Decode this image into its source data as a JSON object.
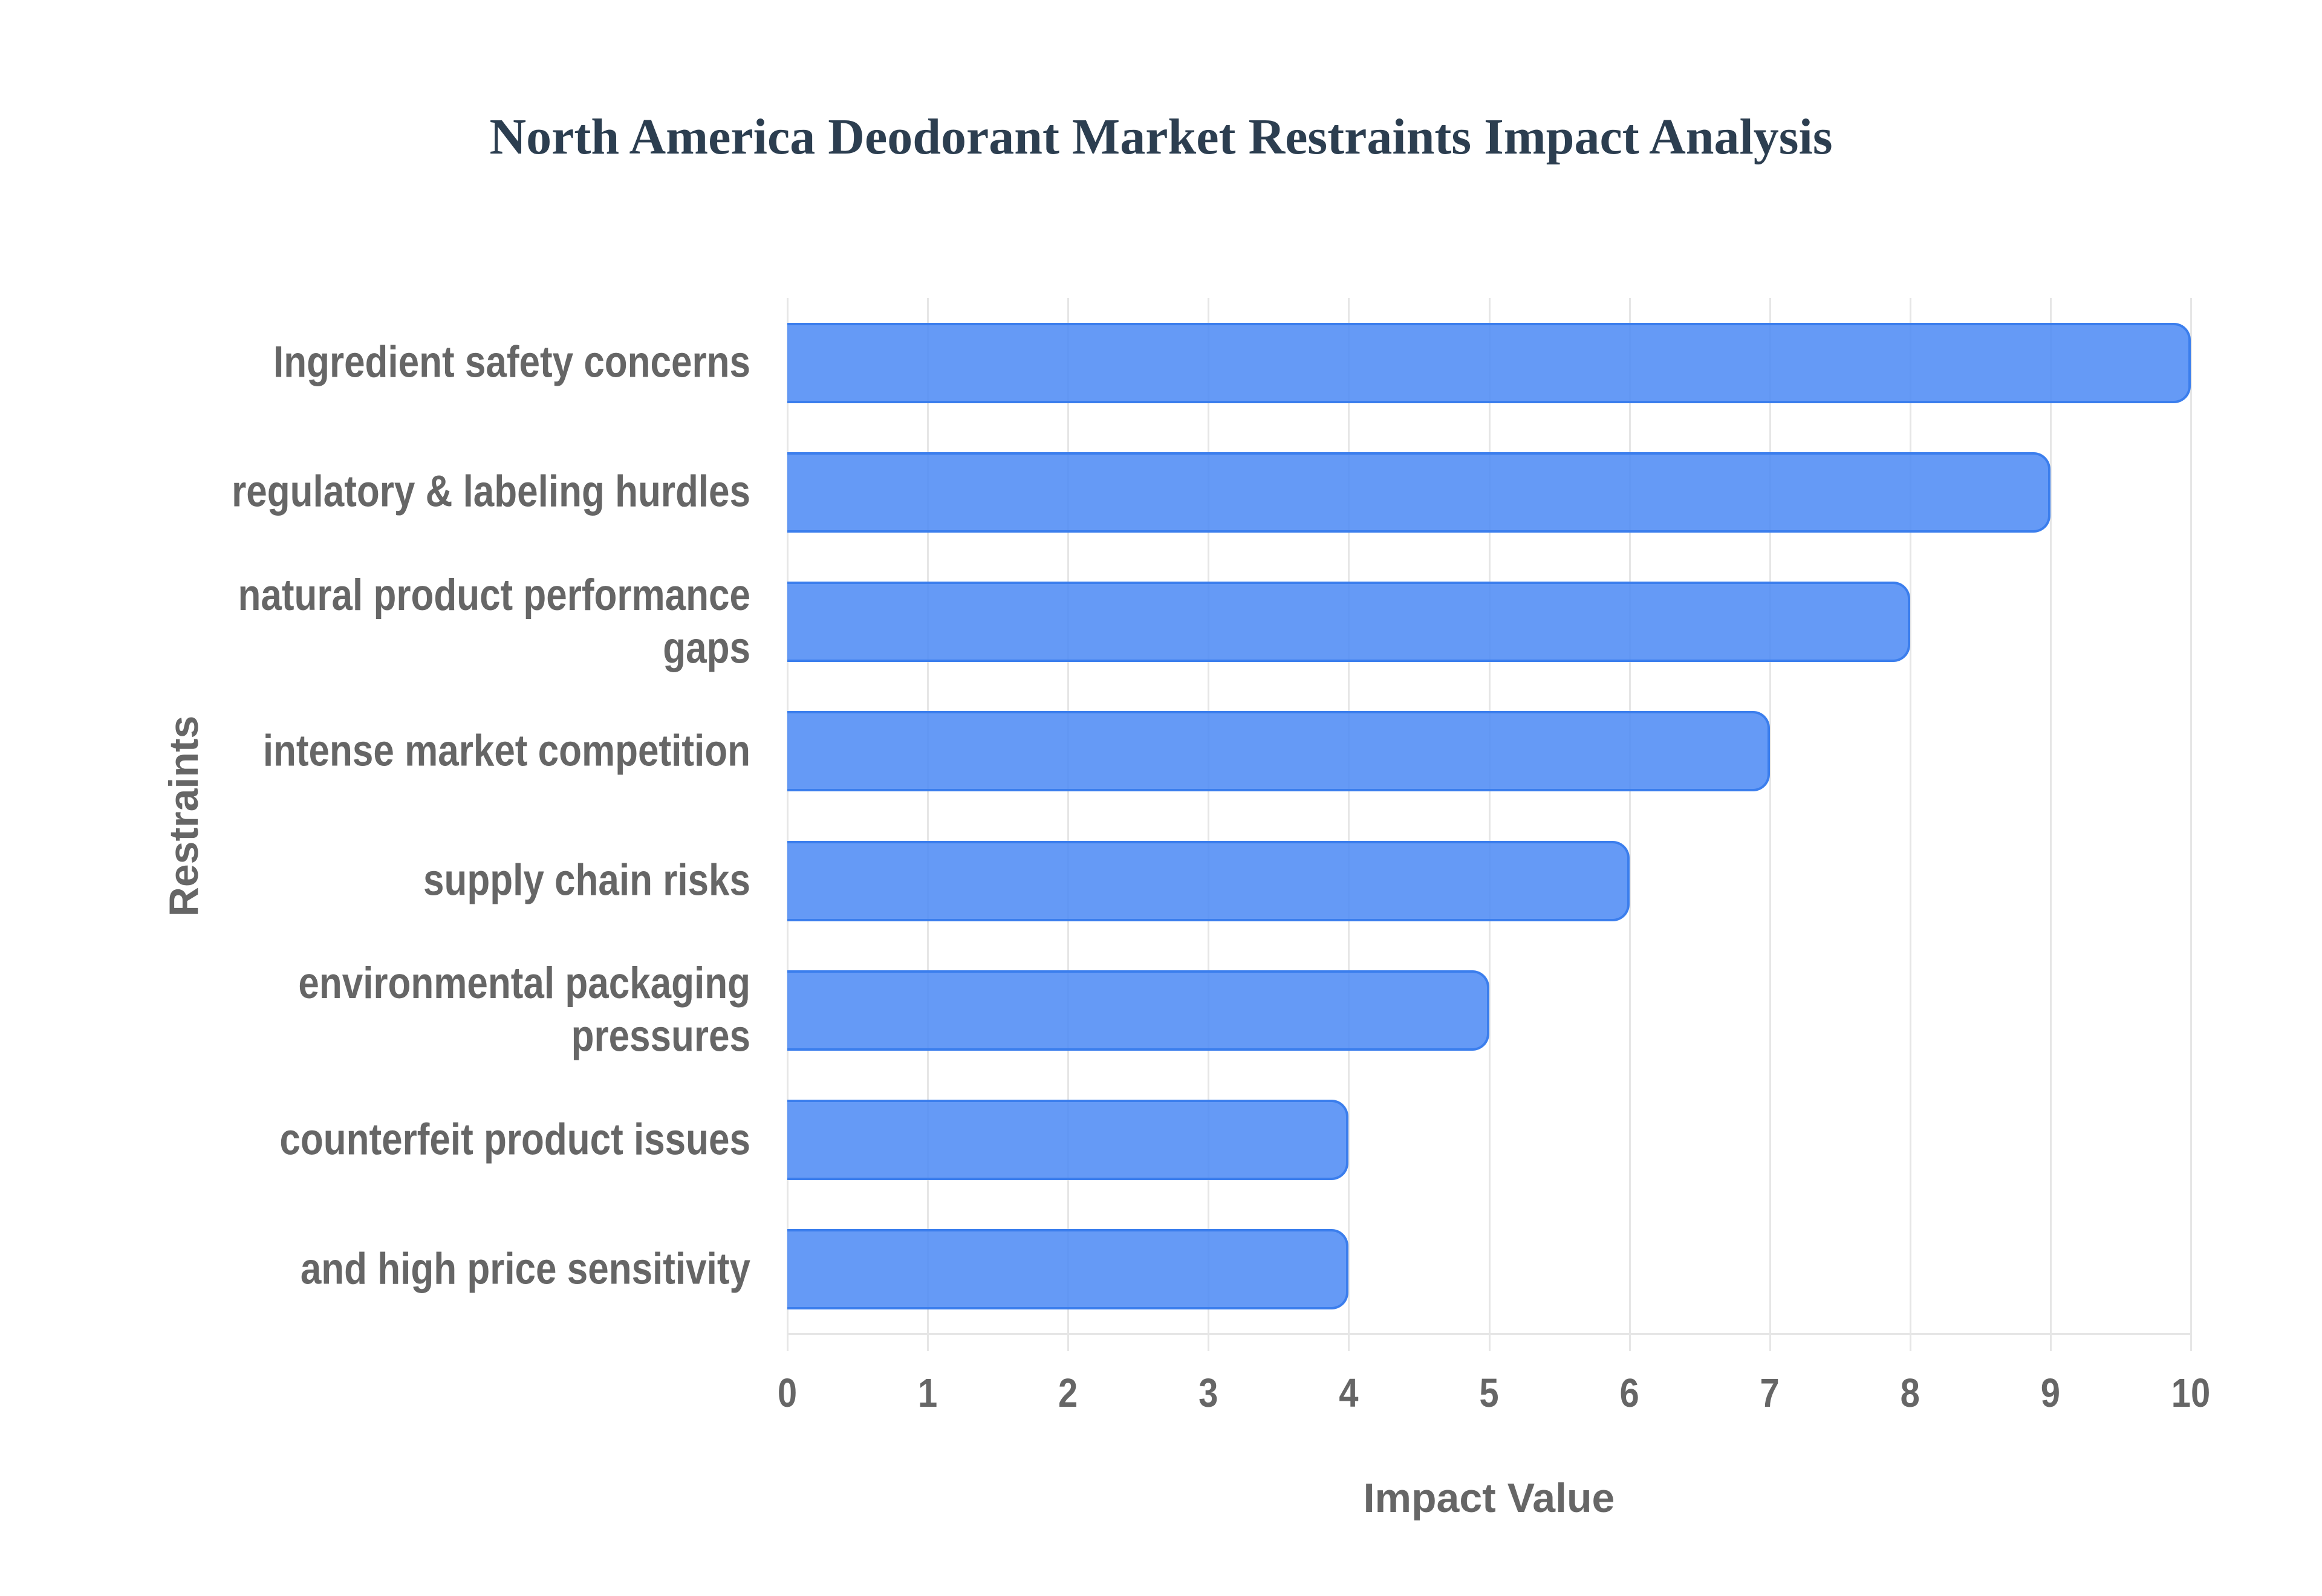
{
  "chart": {
    "title": "North America Deodorant Market Restraints Impact Analysis",
    "x_axis_title": "Impact Value",
    "y_axis_title": "Restraints"
  },
  "colors": {
    "title": "#2c3e50",
    "bar_fill": "#6499f5",
    "bar_border": "#3b7eed",
    "axis_text": "#666666",
    "gridline": "#e6e6e6"
  },
  "chart_data": {
    "type": "bar",
    "orientation": "horizontal",
    "title": "North America Deodorant Market Restraints Impact Analysis",
    "xlabel": "Impact Value",
    "ylabel": "Restraints",
    "categories": [
      "Ingredient safety concerns",
      "regulatory & labeling hurdles",
      "natural product performance gaps",
      "intense market competition",
      "supply chain risks",
      "environmental packaging pressures",
      "counterfeit product issues",
      "and high price sensitivity"
    ],
    "category_display_lines": [
      [
        "Ingredient safety concerns"
      ],
      [
        "regulatory & labeling hurdles"
      ],
      [
        "natural product performance",
        "gaps"
      ],
      [
        "intense market competition"
      ],
      [
        "supply chain risks"
      ],
      [
        "environmental packaging",
        "pressures"
      ],
      [
        "counterfeit product issues"
      ],
      [
        "and high price sensitivity"
      ]
    ],
    "values": [
      10,
      9,
      8,
      7,
      6,
      5,
      4,
      4
    ],
    "xlim": [
      0,
      10
    ],
    "x_ticks": [
      "0",
      "1",
      "2",
      "3",
      "4",
      "5",
      "6",
      "7",
      "8",
      "9",
      "10"
    ],
    "grid": true,
    "legend": "none"
  }
}
